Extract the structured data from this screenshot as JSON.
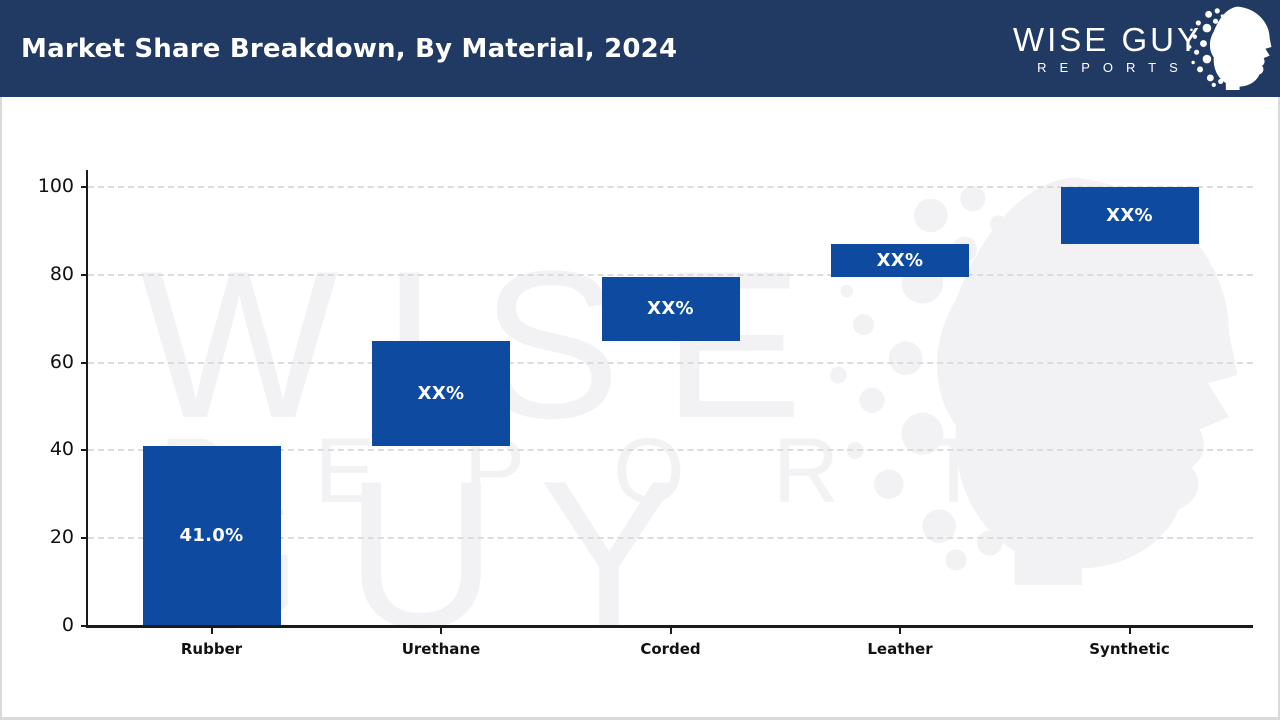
{
  "header": {
    "title": "Market Share Breakdown, By Material, 2024",
    "logo": {
      "line1": "WISE GUY",
      "line2": "REPORTS"
    }
  },
  "watermark": {
    "line1": "WISE GUY",
    "line2": "REPORTS"
  },
  "colors": {
    "header_bg": "#213a64",
    "bar": "#0d4aa0",
    "bar_label": "#ffffff",
    "grid": "#dcdcdc",
    "axis": "#1a1a1a",
    "watermark": "#f2f2f4",
    "page_border": "#d9d9d9"
  },
  "chart_data": {
    "type": "bar",
    "subtype": "waterfall-stacked-percentage",
    "title": "Market Share Breakdown, By Material, 2024",
    "categories": [
      "Rubber",
      "Urethane",
      "Corded",
      "Leather",
      "Synthetic"
    ],
    "segments": [
      {
        "category": "Rubber",
        "start": 0,
        "end": 41,
        "label": "41.0%"
      },
      {
        "category": "Urethane",
        "start": 41,
        "end": 65,
        "label": "XX%"
      },
      {
        "category": "Corded",
        "start": 65,
        "end": 79.5,
        "label": "XX%"
      },
      {
        "category": "Leather",
        "start": 79.5,
        "end": 87,
        "label": "XX%"
      },
      {
        "category": "Synthetic",
        "start": 87,
        "end": 100,
        "label": "XX%"
      }
    ],
    "y_ticks": [
      0,
      20,
      40,
      60,
      80,
      100
    ],
    "ylim": [
      0,
      104
    ],
    "xlabel": "",
    "ylabel": "",
    "grid": "horizontal-dashed",
    "legend": "none"
  }
}
